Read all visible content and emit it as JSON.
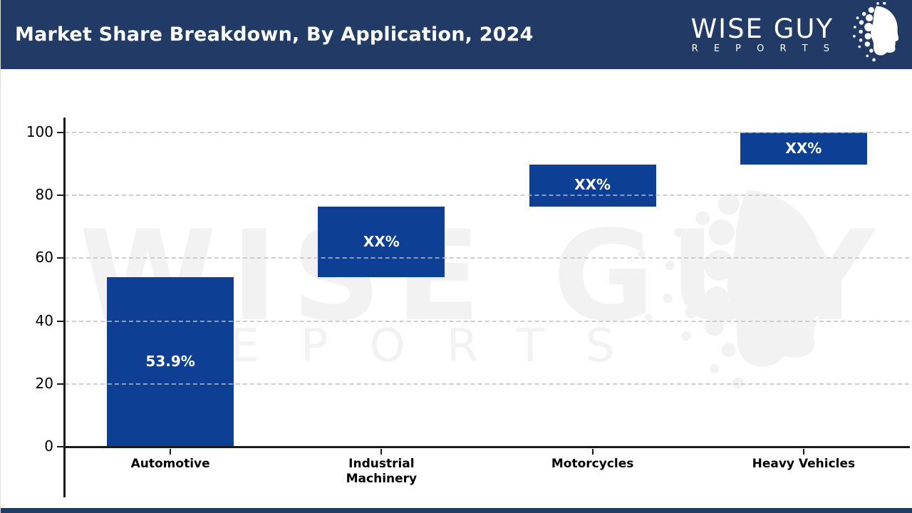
{
  "header": {
    "title": "Market Share Breakdown, By Application, 2024",
    "logo": {
      "line1": "WISE GUY",
      "line2": "R E P O R T S"
    }
  },
  "watermark": {
    "line1": "WISE GUY",
    "line2": "REPORTS"
  },
  "colors": {
    "header_navy": "#223a66",
    "bar_blue": "#0d4094",
    "gridline_gray": "#bebebe",
    "watermark_gray": "#f2f2f2",
    "axis_black": "#1a1a1a",
    "label_white": "#ffffff"
  },
  "chart_data": {
    "type": "bar",
    "subtype": "waterfall",
    "title": "Market Share Breakdown, By Application, 2024",
    "xlabel": "",
    "ylabel": "",
    "ylim": [
      0,
      100
    ],
    "yticks": [
      0,
      20,
      40,
      60,
      80,
      100
    ],
    "grid": "dashed horizontal, drawn over bars",
    "legend": "none",
    "categories": [
      "Automotive",
      "Industrial Machinery",
      "Motorcycles",
      "Heavy Vehicles"
    ],
    "series": [
      {
        "name": "Market Share (%)",
        "segments": [
          {
            "category": "Automotive",
            "start": 0,
            "end": 53.9,
            "label": "53.9%"
          },
          {
            "category": "Industrial Machinery",
            "start": 53.9,
            "end": 76.4,
            "label": "XX%"
          },
          {
            "category": "Motorcycles",
            "start": 76.4,
            "end": 89.9,
            "label": "XX%"
          },
          {
            "category": "Heavy Vehicles",
            "start": 89.9,
            "end": 99.9,
            "label": "XX%"
          }
        ]
      }
    ]
  }
}
